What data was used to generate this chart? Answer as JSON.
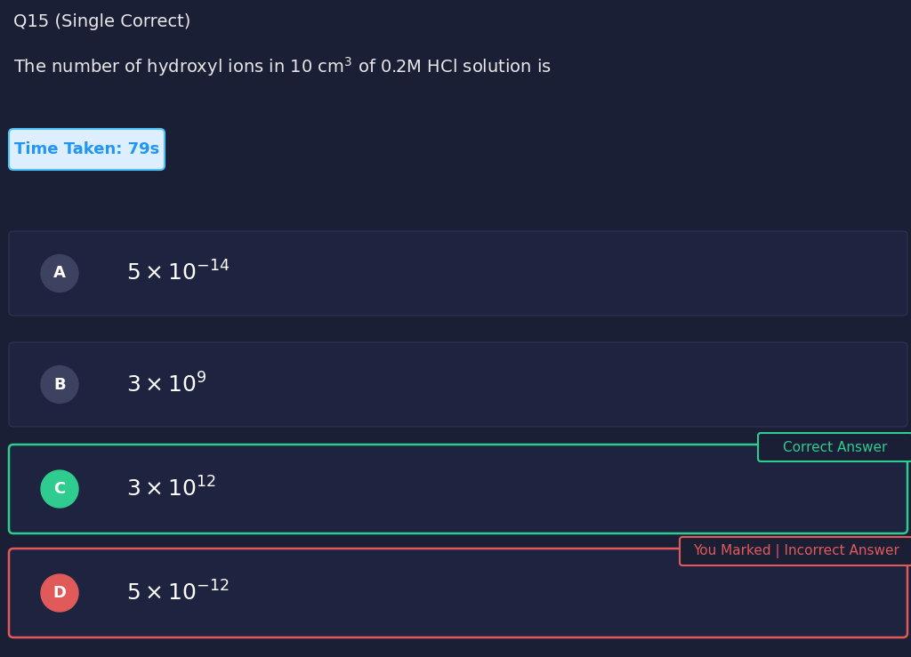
{
  "bg_color": "#1a1f35",
  "title": "Q15 (Single Correct)",
  "time_taken": "Time Taken: 79s",
  "options": [
    {
      "label": "A",
      "base": "5 × 10",
      "exp": "-14",
      "circle_color": "#3d4260",
      "text_color": "#ffffff"
    },
    {
      "label": "B",
      "base": "3 × 10",
      "exp": "9",
      "circle_color": "#3d4260",
      "text_color": "#ffffff"
    },
    {
      "label": "C",
      "base": "3 × 10",
      "exp": "12",
      "circle_color": "#2ecc8e",
      "text_color": "#ffffff",
      "correct": true
    },
    {
      "label": "D",
      "base": "5 × 10",
      "exp": "-12",
      "circle_color": "#e05a5a",
      "text_color": "#ffffff",
      "marked": true
    }
  ],
  "correct_answer_label": "Correct Answer",
  "correct_answer_color": "#2ecc8e",
  "marked_label": "You Marked | Incorrect Answer",
  "marked_color": "#e05a5a",
  "option_bg_color": "#1e2340",
  "option_border_color": "#2e3456",
  "time_box_bg": "#ddeeff",
  "time_box_border": "#4fc3f7",
  "time_text_color": "#2196f3"
}
